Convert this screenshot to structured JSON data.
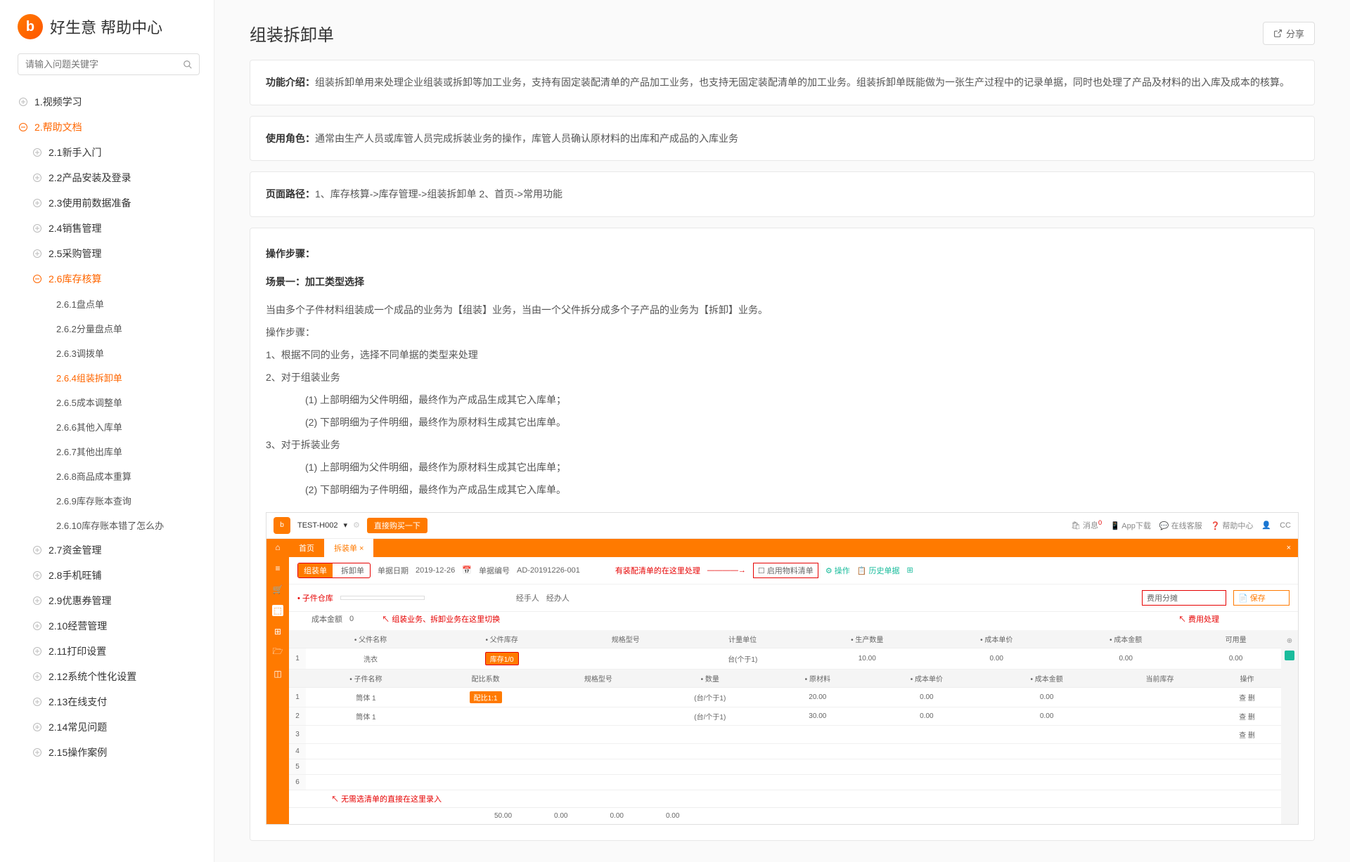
{
  "header": {
    "logo_text": "好生意 帮助中心",
    "logo_letter": "b",
    "search_placeholder": "请输入问题关键字"
  },
  "nav": {
    "level1": [
      {
        "label": "1.视频学习",
        "expanded": false
      },
      {
        "label": "2.帮助文档",
        "expanded": true
      }
    ],
    "level2": [
      {
        "label": "2.1新手入门"
      },
      {
        "label": "2.2产品安装及登录"
      },
      {
        "label": "2.3使用前数据准备"
      },
      {
        "label": "2.4销售管理"
      },
      {
        "label": "2.5采购管理"
      },
      {
        "label": "2.6库存核算",
        "expanded": true
      },
      {
        "label": "2.7资金管理"
      },
      {
        "label": "2.8手机旺铺"
      },
      {
        "label": "2.9优惠券管理"
      },
      {
        "label": "2.10经营管理"
      },
      {
        "label": "2.11打印设置"
      },
      {
        "label": "2.12系统个性化设置"
      },
      {
        "label": "2.13在线支付"
      },
      {
        "label": "2.14常见问题"
      },
      {
        "label": "2.15操作案例"
      }
    ],
    "level3": [
      {
        "label": "2.6.1盘点单"
      },
      {
        "label": "2.6.2分量盘点单"
      },
      {
        "label": "2.6.3调拨单"
      },
      {
        "label": "2.6.4组装拆卸单",
        "active": true
      },
      {
        "label": "2.6.5成本调整单"
      },
      {
        "label": "2.6.6其他入库单"
      },
      {
        "label": "2.6.7其他出库单"
      },
      {
        "label": "2.6.8商品成本重算"
      },
      {
        "label": "2.6.9库存账本查询"
      },
      {
        "label": "2.6.10库存账本错了怎么办"
      }
    ]
  },
  "page": {
    "title": "组装拆卸单",
    "share_label": "分享"
  },
  "cards": {
    "intro_label": "功能介绍：",
    "intro_text": "组装拆卸单用来处理企业组装或拆卸等加工业务，支持有固定装配清单的产品加工业务，也支持无固定装配清单的加工业务。组装拆卸单既能做为一张生产过程中的记录单据，同时也处理了产品及材料的出入库及成本的核算。",
    "role_label": "使用角色：",
    "role_text": "通常由生产人员或库管人员完成拆装业务的操作，库管人员确认原材料的出库和产成品的入库业务",
    "path_label": "页面路径：",
    "path_text": "1、库存核算->库存管理->组装拆卸单 2、首页->常用功能"
  },
  "content": {
    "steps_title": "操作步骤：",
    "scene1_title": "场景一：加工类型选择",
    "scene1_desc": "当由多个子件材料组装成一个成品的业务为【组装】业务，当由一个父件拆分成多个子产品的业务为【拆卸】业务。",
    "steps_label": "操作步骤：",
    "step1": "1、根据不同的业务，选择不同单据的类型来处理",
    "step2": "2、对于组装业务",
    "step2_1": "(1) 上部明细为父件明细，最终作为产成品生成其它入库单；",
    "step2_2": "(2) 下部明细为子件明细，最终作为原材料生成其它出库单。",
    "step3": "3、对于拆装业务",
    "step3_1": "(1) 上部明细为父件明细，最终作为原材料生成其它出库单；",
    "step3_2": "(2) 下部明细为子件明细，最终作为产成品生成其它入库单。"
  },
  "screenshot": {
    "top": {
      "account": "TEST-H002",
      "trial_btn": "直接购买一下",
      "icons": [
        "消息",
        "App下载",
        "在线客服",
        "帮助中心"
      ],
      "user": "CC"
    },
    "tabs": {
      "home": "首页",
      "active": "拆装单"
    },
    "form": {
      "radio1": "组装单",
      "radio2": "拆卸单",
      "date_label": "单据日期",
      "date_value": "2019-12-26",
      "doc_label": "单据编号",
      "doc_value": "AD-20191226-001",
      "annot1": "有装配清单的在这里处理",
      "btn_right": "启用物料清单",
      "btn_ops": "操作",
      "btn_history": "历史单据",
      "handler_label": "经手人",
      "handler_value": "经办人",
      "cost_dist": "费用分摊",
      "save_label": "保存",
      "annot2": "组装业务、拆卸业务在这里切换",
      "annot3": "费用处理",
      "annot4": "无需选清单的直接在这里录入",
      "cost_label": "成本金额"
    },
    "table1": {
      "headers": [
        "",
        "• 父件名称",
        "• 父件库存",
        "规格型号",
        "计量单位",
        "• 生产数量",
        "• 成本单价",
        "• 成本金额",
        "可用量"
      ],
      "row": [
        "1",
        "洗衣",
        "库存1/0",
        "",
        "台(个于1)",
        "10.00",
        "0.00",
        "0.00",
        "0.00"
      ]
    },
    "table2": {
      "headers": [
        "",
        "• 子件名称",
        "配比系数",
        "规格型号",
        "• 数量",
        "• 原材料",
        "• 成本单价",
        "• 成本金额",
        "当前库存",
        "操作"
      ],
      "rows": [
        [
          "1",
          "筒体 1",
          "",
          "",
          "(台/个于1)",
          "20.00",
          "0.00",
          "0.00",
          "",
          "查 删"
        ],
        [
          "2",
          "筒体 1",
          "",
          "",
          "(台/个于1)",
          "30.00",
          "0.00",
          "0.00",
          "",
          "查 删"
        ],
        [
          "3",
          "",
          "",
          "",
          "",
          "",
          "",
          "",
          "",
          "查 删"
        ],
        [
          "4",
          "",
          "",
          "",
          "",
          "",
          "",
          "",
          "",
          ""
        ],
        [
          "5",
          "",
          "",
          "",
          "",
          "",
          "",
          "",
          "",
          ""
        ],
        [
          "6",
          "",
          "",
          "",
          "",
          "",
          "",
          "",
          "",
          ""
        ]
      ],
      "totals": [
        "50.00",
        "0.00",
        "0.00",
        "0.00"
      ]
    }
  },
  "colors": {
    "accent": "#ff6600",
    "red_annot": "#e60000",
    "teal": "#1abc9c"
  }
}
